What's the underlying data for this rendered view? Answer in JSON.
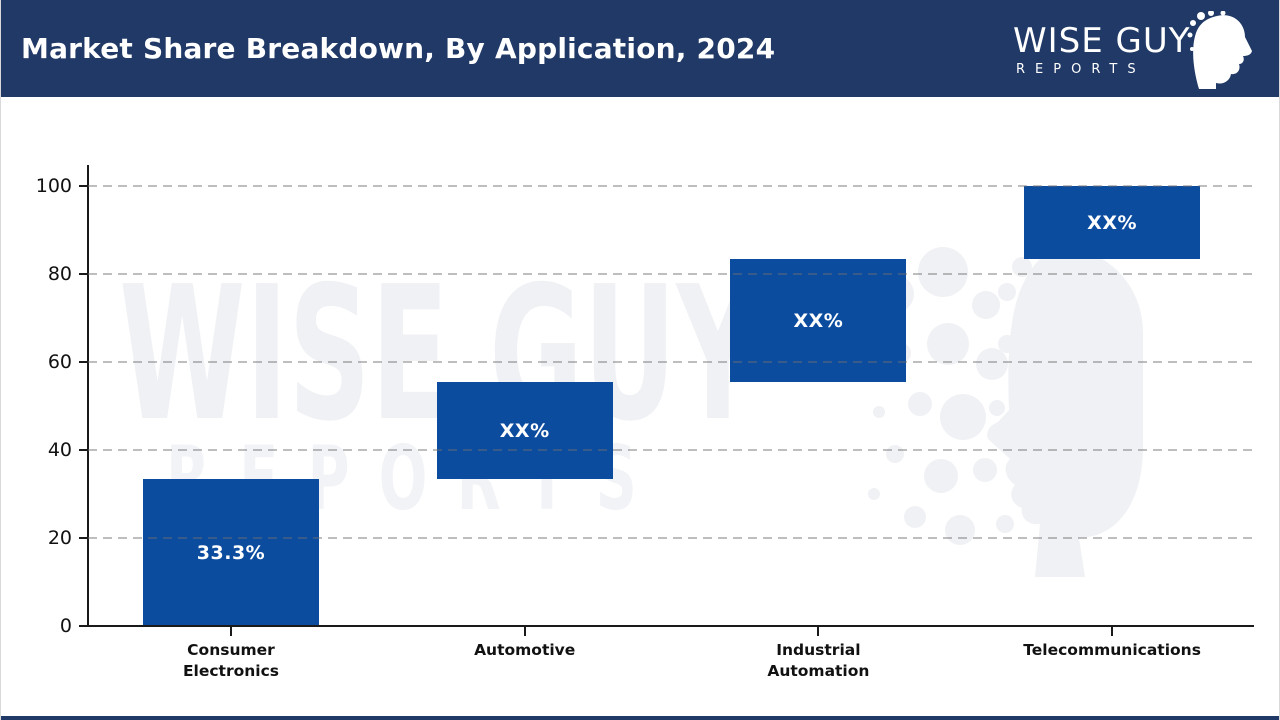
{
  "header": {
    "title": "Market Share Breakdown, By Application, 2024",
    "logo": {
      "brand_line1": "WISE GUY",
      "brand_line2": "REPORTS"
    }
  },
  "watermark": {
    "line1": "WISE GUY",
    "line2": "REPORTS"
  },
  "chart_data": {
    "type": "bar",
    "subtype": "waterfall-floating-bars",
    "title": "Market Share Breakdown, By Application, 2024",
    "categories": [
      "Consumer\nElectronics",
      "Automotive",
      "Industrial\nAutomation",
      "Telecommunications"
    ],
    "series": [
      {
        "name": "Market Share",
        "segments": [
          {
            "category": "Consumer Electronics",
            "start": 0,
            "end": 33.3,
            "label": "33.3%"
          },
          {
            "category": "Automotive",
            "start": 33.3,
            "end": 55.5,
            "label": "XX%"
          },
          {
            "category": "Industrial Automation",
            "start": 55.5,
            "end": 83.3,
            "label": "XX%"
          },
          {
            "category": "Telecommunications",
            "start": 83.3,
            "end": 100,
            "label": "XX%"
          }
        ]
      }
    ],
    "xlabel": "",
    "ylabel": "",
    "ylim": [
      0,
      100
    ],
    "yticks": [
      0,
      20,
      40,
      60,
      80,
      100
    ],
    "grid": "dashed-horizontal",
    "legend": "none",
    "bar_color": "#0C4C9F",
    "label_color": "#FFFFFF"
  },
  "colors": {
    "header_bg": "#203966",
    "footer_bg": "#203966",
    "bar": "#0C4C9F",
    "axis": "#1A1A1A",
    "watermark": "#F0F1F4"
  }
}
